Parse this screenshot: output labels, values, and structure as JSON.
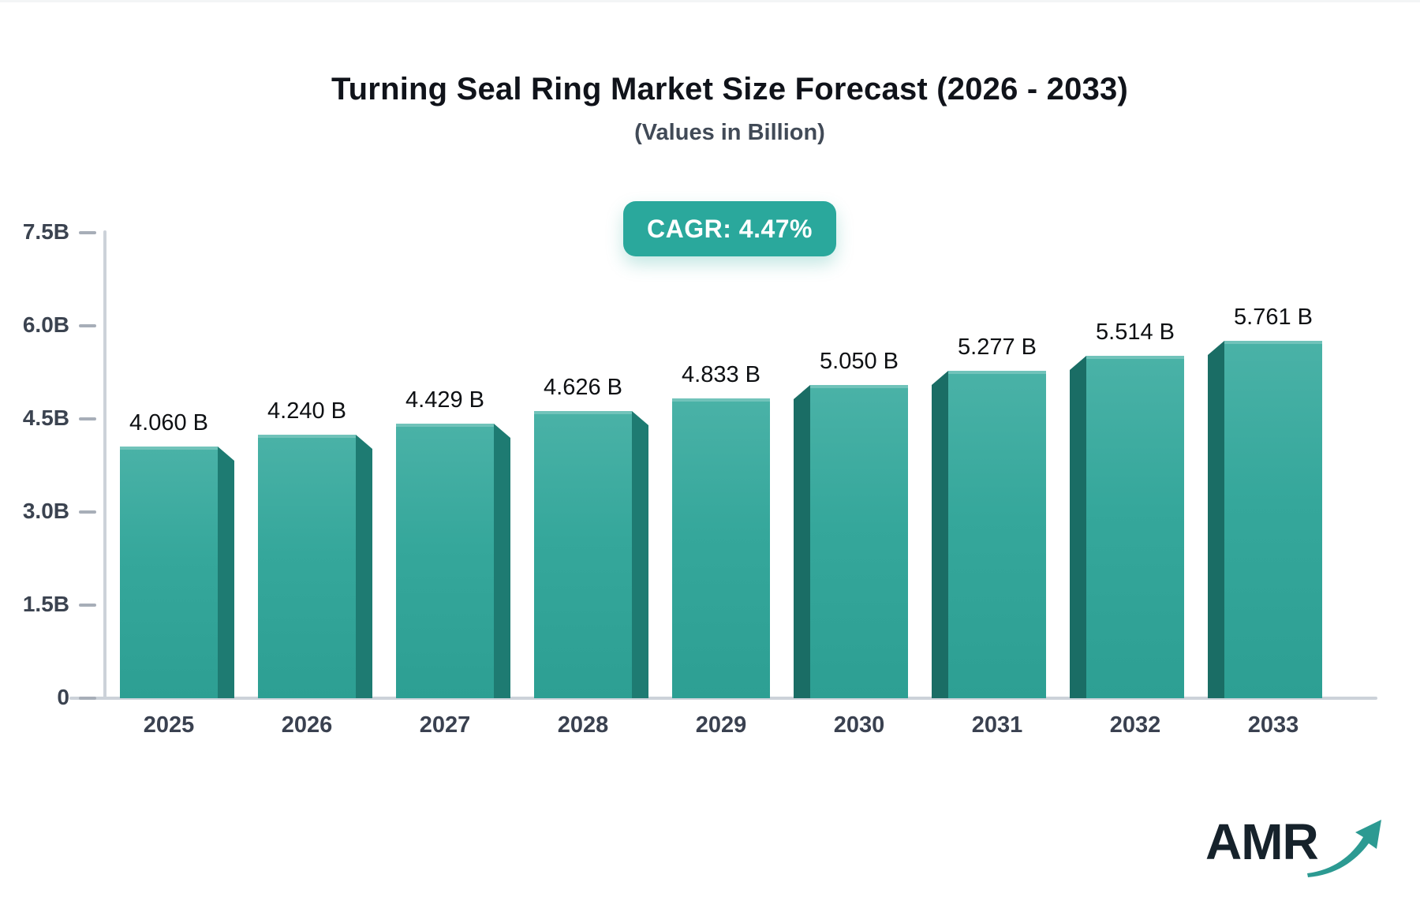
{
  "header": {
    "title": "Turning Seal Ring Market Size Forecast (2026 - 2033)",
    "subtitle": "(Values in Billion)"
  },
  "badge": {
    "label": "CAGR: 4.47%",
    "color": "#2aa89c"
  },
  "logo": {
    "text": "AMR",
    "arrow_color": "#2c9a92",
    "text_color": "#16222b"
  },
  "chart_data": {
    "type": "bar",
    "title": "Turning Seal Ring Market Size Forecast (2026 - 2033)",
    "subtitle": "(Values in Billion)",
    "cagr": "4.47%",
    "categories": [
      "2025",
      "2026",
      "2027",
      "2028",
      "2029",
      "2030",
      "2031",
      "2032",
      "2033"
    ],
    "values": [
      4.06,
      4.24,
      4.429,
      4.626,
      4.833,
      5.05,
      5.277,
      5.514,
      5.761
    ],
    "value_labels": [
      "4.060 B",
      "4.240 B",
      "4.429 B",
      "4.626 B",
      "4.833 B",
      "5.050 B",
      "5.277 B",
      "5.514 B",
      "5.761 B"
    ],
    "xlabel": "",
    "ylabel": "",
    "ylim": [
      0,
      7.5
    ],
    "yticks": {
      "values": [
        0,
        1.5,
        3.0,
        4.5,
        6.0,
        7.5
      ],
      "labels": [
        "0",
        "1.5B",
        "3.0B",
        "4.5B",
        "6.0B",
        "7.5B"
      ]
    },
    "grid": false,
    "legend": false,
    "bar_colors": {
      "face_top": "#4ab2a7",
      "face_bottom": "#2d9f93",
      "side_right": "#1e7b72",
      "side_left": "#1a6d65"
    }
  }
}
